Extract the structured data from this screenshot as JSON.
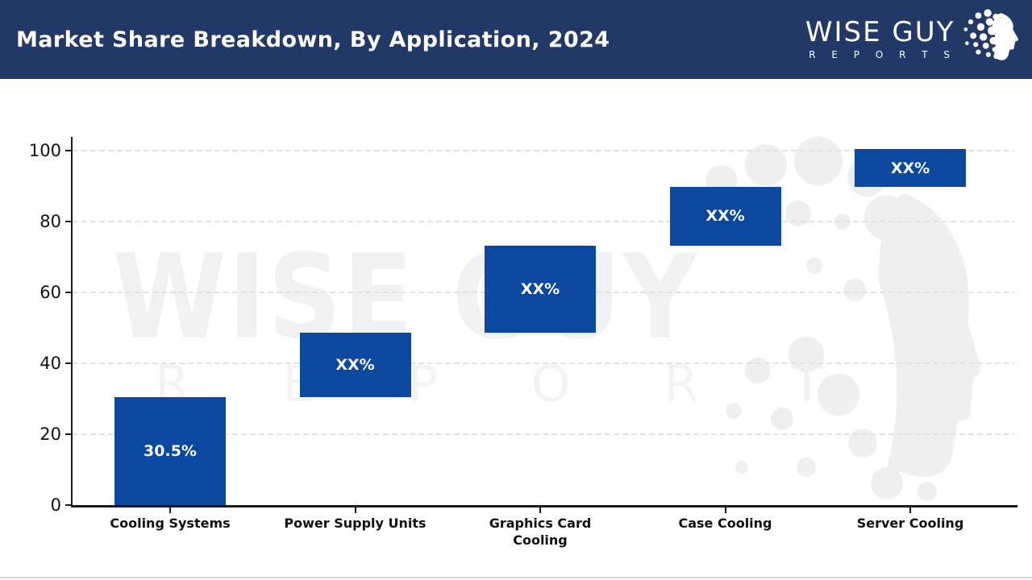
{
  "header": {
    "title": "Market Share Breakdown, By Application, 2024",
    "logo": {
      "line1": "WISE GUY",
      "line2": "R E P O R T S"
    }
  },
  "watermark": {
    "line1": "WISE GUY",
    "line2": "R E P O R T S"
  },
  "colors": {
    "header_bg": "#223866",
    "bar": "#0c47a0",
    "axis": "#1a1a1a",
    "grid": "#e2e2e2",
    "watermark": "#efefef",
    "title_text": "#ffffff",
    "value_label_text": "#ffffff"
  },
  "chart_data": {
    "type": "bar",
    "subtype": "waterfall",
    "title": "Market Share Breakdown, By Application, 2024",
    "categories": [
      "Cooling Systems",
      "Power Supply Units",
      "Graphics Card Cooling",
      "Case Cooling",
      "Server Cooling"
    ],
    "segments": [
      {
        "category": "Cooling Systems",
        "start": 0,
        "end": 30.5,
        "label": "30.5%"
      },
      {
        "category": "Power Supply Units",
        "start": 30.5,
        "end": 48.6,
        "label": "XX%"
      },
      {
        "category": "Graphics Card Cooling",
        "start": 48.6,
        "end": 73.2,
        "label": "XX%"
      },
      {
        "category": "Case Cooling",
        "start": 73.2,
        "end": 89.8,
        "label": "XX%"
      },
      {
        "category": "Server Cooling",
        "start": 89.8,
        "end": 100.4,
        "label": "XX%"
      }
    ],
    "value_labels": [
      "30.5%",
      "XX%",
      "XX%",
      "XX%",
      "XX%"
    ],
    "yticks": [
      0,
      20,
      40,
      60,
      80,
      100
    ],
    "ylim": [
      0,
      104
    ],
    "xlabel": "",
    "ylabel": "",
    "grid": "horizontal-dashed",
    "legend": "none",
    "bar_color": "#0c47a0"
  }
}
